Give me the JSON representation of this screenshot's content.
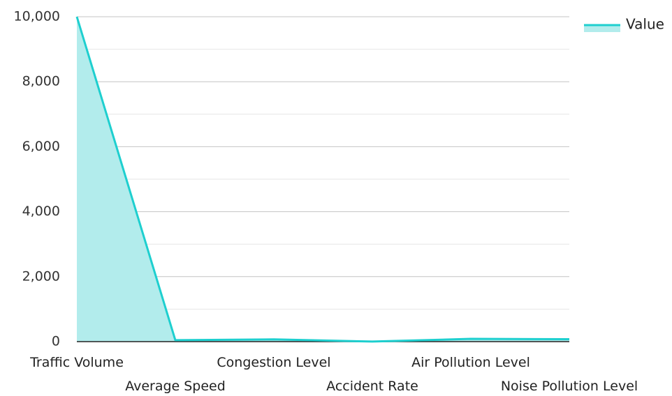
{
  "chart_data": {
    "type": "area",
    "categories": [
      "Traffic Volume",
      "Average Speed",
      "Congestion Level",
      "Accident Rate",
      "Air Pollution Level",
      "Noise Pollution Level"
    ],
    "series": [
      {
        "name": "Value",
        "values": [
          10000,
          45,
          70,
          2,
          85,
          75
        ],
        "color": "#1ECFCF",
        "fill_color": "#B2ECEC"
      }
    ],
    "ylim": [
      0,
      10000
    ],
    "y_ticks": [
      "0",
      "2,000",
      "4,000",
      "6,000",
      "8,000",
      "10,000"
    ],
    "grid": true,
    "legend_position": "top-right",
    "title": "",
    "xlabel": "",
    "ylabel": ""
  }
}
